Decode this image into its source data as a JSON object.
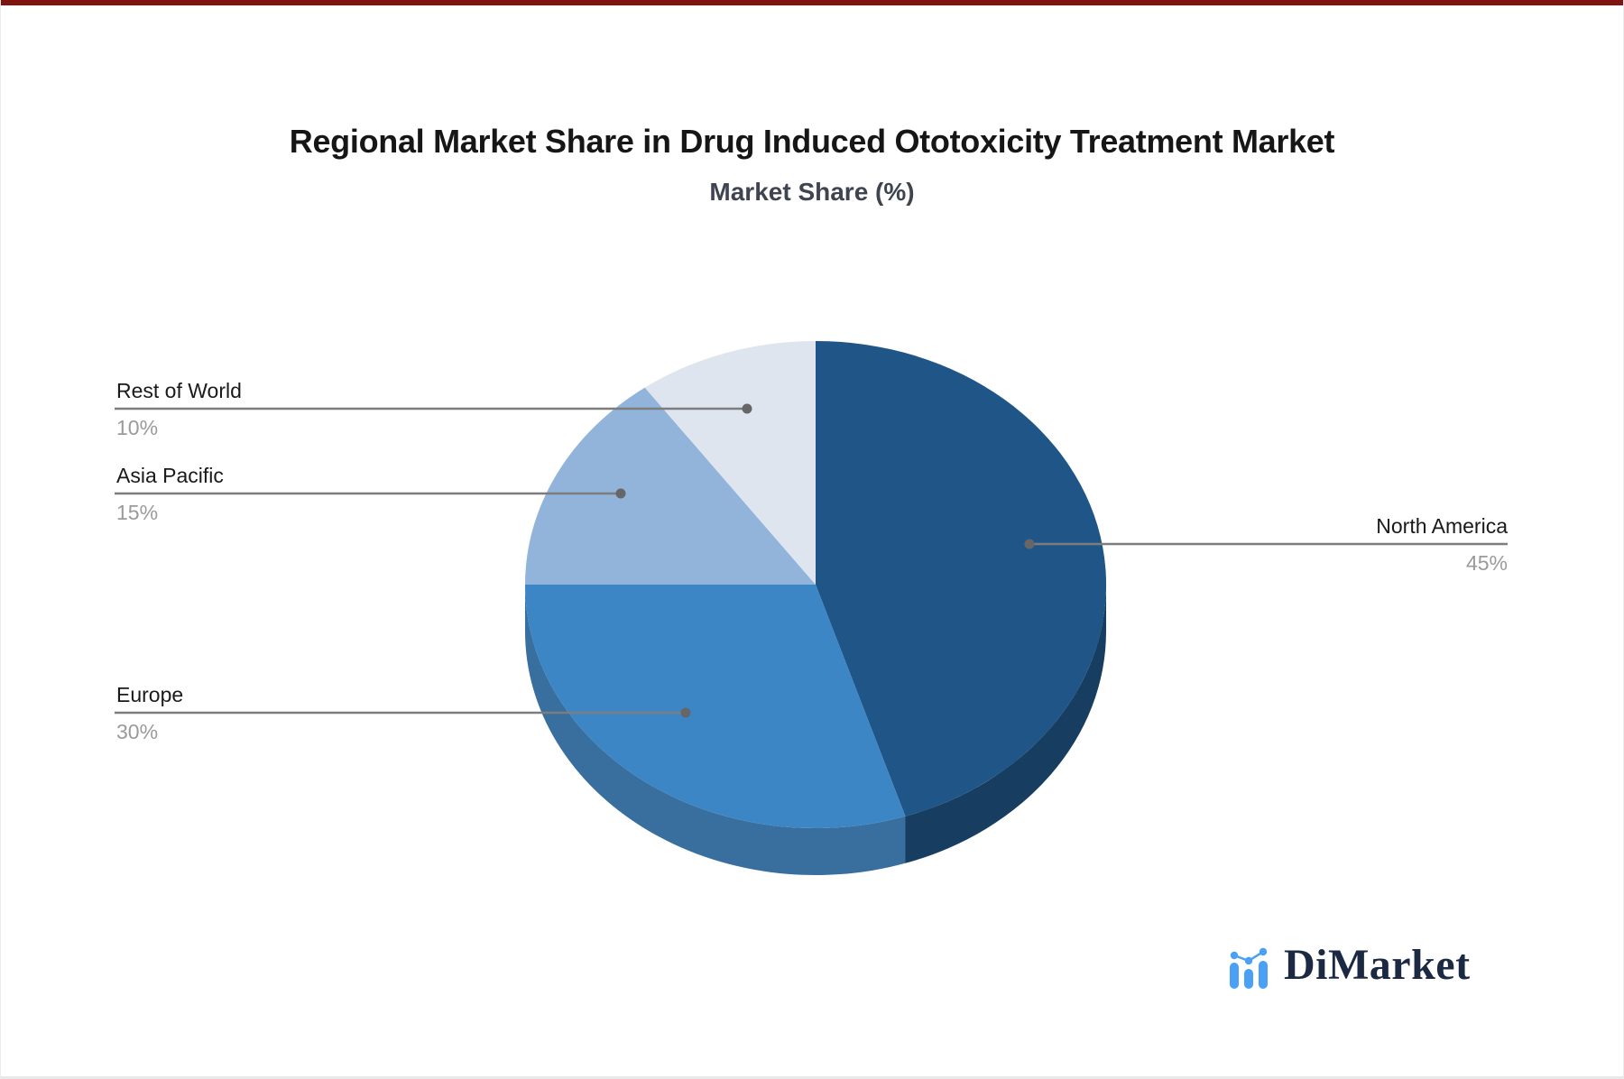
{
  "chart_data": {
    "type": "pie",
    "title": "Regional Market Share in Drug Induced Ototoxicity Treatment Market",
    "subtitle": "Market Share (%)",
    "unit": "%",
    "direction": "clockwise",
    "start_angle_deg": 0,
    "effect": "3d-depth",
    "labels_layout": "leader-lines",
    "categories": [
      "North America",
      "Europe",
      "Asia Pacific",
      "Rest of World"
    ],
    "values": [
      45,
      30,
      15,
      10
    ],
    "value_labels": [
      "45%",
      "30%",
      "15%",
      "10%"
    ],
    "colors": [
      {
        "top": "#1F5687",
        "side": "#173E61"
      },
      {
        "top": "#3C86C6",
        "side": "#386F9F"
      },
      {
        "top": "#92B4DA",
        "side": "#7FA2C8"
      },
      {
        "top": "#DFE5EE",
        "side": "#C4CFDE"
      }
    ]
  },
  "styles": {
    "title_color": "#161616",
    "subtitle_color": "#3E4450",
    "label_color": "#1A1A1A",
    "pct_color": "#9A9A9A",
    "leader_line_color": "#7D7D7D",
    "leader_dot_color": "#666666",
    "background": "#FFFFFF",
    "top_accent_color": "#7D1412"
  },
  "logo": {
    "text": "DiMarket",
    "icon": "bar-line-chart-icon",
    "icon_color": "#4AA0F4",
    "text_color": "#1B2942"
  }
}
